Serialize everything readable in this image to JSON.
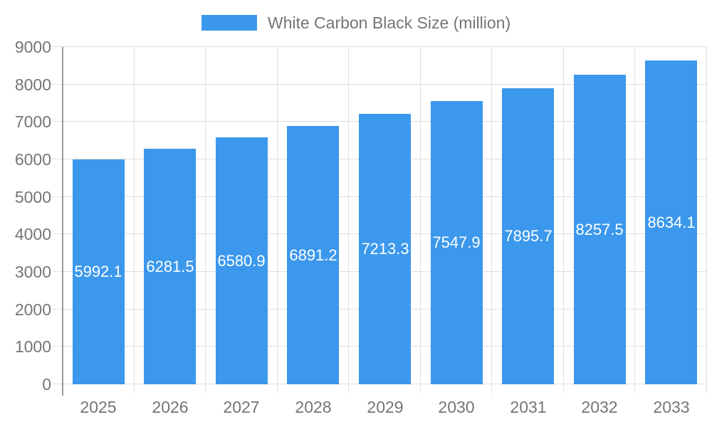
{
  "chart_data": {
    "type": "bar",
    "title": "White Carbon Black Size (million)",
    "categories": [
      "2025",
      "2026",
      "2027",
      "2028",
      "2029",
      "2030",
      "2031",
      "2032",
      "2033"
    ],
    "values": [
      5992.1,
      6281.5,
      6580.9,
      6891.2,
      7213.3,
      7547.9,
      7895.7,
      8257.5,
      8634.1
    ],
    "xlabel": "",
    "ylabel": "",
    "ylim": [
      0,
      9000
    ],
    "ytick_step": 1000,
    "grid": true,
    "legend_position": "top-center",
    "bar_label_position": "inside-center",
    "colors": {
      "bar": "#3B98EC",
      "bar_label": "#FFFFFF",
      "axis_text": "#757575",
      "legend_text": "#757575",
      "grid_line": "#E0E0E0",
      "axis_line": "#999999"
    }
  }
}
